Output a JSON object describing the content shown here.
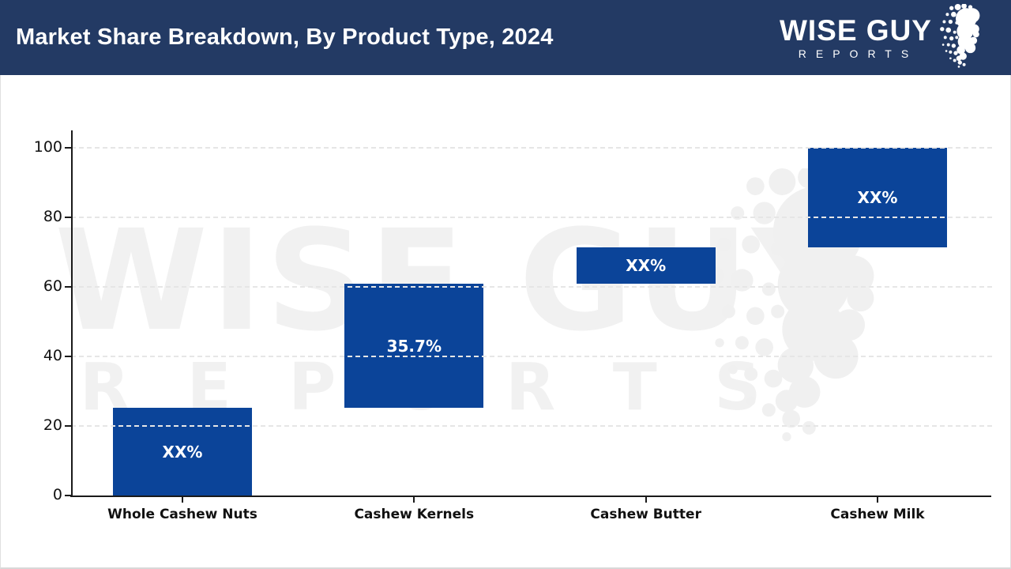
{
  "header": {
    "title": "Market Share Breakdown, By Product Type, 2024",
    "logo": {
      "wordmark": "WISE GUY",
      "subtext": "REPORTS"
    }
  },
  "watermark": {
    "line1": "WISE GUY",
    "line2": "R E P O R T S"
  },
  "chart_data": {
    "type": "bar",
    "subtype": "waterfall-segmented-bars",
    "title": "Market Share Breakdown, By Product Type, 2024",
    "categories": [
      "Whole Cashew Nuts",
      "Cashew Kernels",
      "Cashew Butter",
      "Cashew Milk"
    ],
    "bars": [
      {
        "category": "Whole Cashew Nuts",
        "label": "XX%",
        "start": 0,
        "end": 25.2
      },
      {
        "category": "Cashew Kernels",
        "label": "35.7%",
        "start": 25.2,
        "end": 60.9
      },
      {
        "category": "Cashew Butter",
        "label": "XX%",
        "start": 60.9,
        "end": 71.4
      },
      {
        "category": "Cashew Milk",
        "label": "XX%",
        "start": 71.4,
        "end": 100
      }
    ],
    "y_ticks": [
      0,
      20,
      40,
      60,
      80,
      100
    ],
    "ylim": [
      0,
      105
    ],
    "xlabel": "",
    "ylabel": "",
    "grid": "horizontal-dashed",
    "legend": false,
    "bar_color": "#0b4499",
    "bar_label_color": "#ffffff"
  },
  "colors": {
    "header_bg": "#233a64",
    "bar": "#0b4499",
    "grid": "#e6e6e6",
    "axis": "#1a1a1a",
    "watermark": "#f1f1f1"
  }
}
